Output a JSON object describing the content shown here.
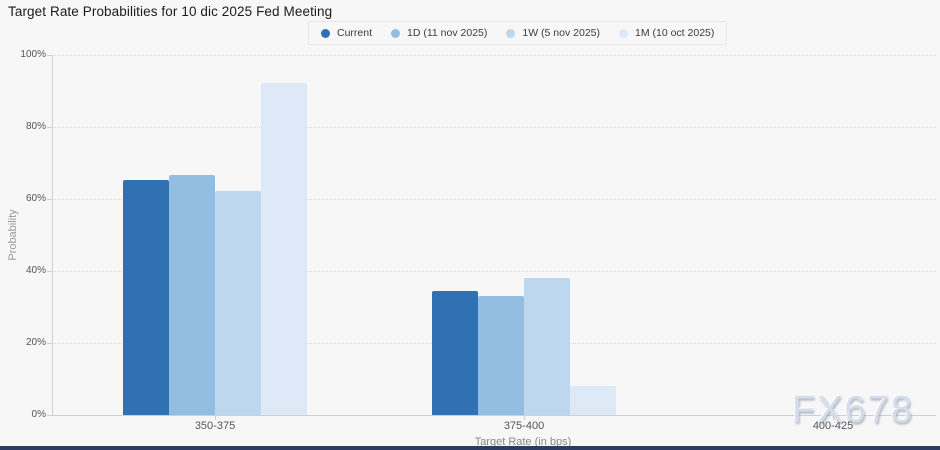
{
  "page": {
    "title": "Target Rate Probabilities for 10 dic 2025 Fed Meeting",
    "watermark": "FX678",
    "background_color": "#f7f7f7",
    "footer_bar_color": "#2b3c63"
  },
  "legend": {
    "items": [
      {
        "label": "Current",
        "color": "#2f71b2"
      },
      {
        "label": "1D (11 nov 2025)",
        "color": "#94bde2"
      },
      {
        "label": "1W (5 nov 2025)",
        "color": "#bdd7ee"
      },
      {
        "label": "1M (10 oct 2025)",
        "color": "#dde9f7"
      }
    ]
  },
  "chart_data": {
    "type": "bar",
    "title": "Target Rate Probabilities for 10 dic 2025 Fed Meeting",
    "categories": [
      "350-375",
      "375-400",
      "400-425"
    ],
    "series": [
      {
        "name": "Current",
        "color": "#2f71b2",
        "values": [
          65.3,
          34.5,
          0
        ]
      },
      {
        "name": "1D (11 nov 2025)",
        "color": "#94bde2",
        "values": [
          66.8,
          33.1,
          0
        ]
      },
      {
        "name": "1W (5 nov 2025)",
        "color": "#bdd7ee",
        "values": [
          62.1,
          38.0,
          0
        ]
      },
      {
        "name": "1M (10 oct 2025)",
        "color": "#dde9f7",
        "values": [
          92.2,
          8.0,
          0
        ]
      }
    ],
    "xlabel": "Target Rate (in bps)",
    "ylabel": "Probability",
    "ylim": [
      0,
      100
    ],
    "ytick_values": [
      0,
      20,
      40,
      60,
      80,
      100
    ],
    "ytick_labels": [
      "0%",
      "20%",
      "40%",
      "60%",
      "80%",
      "100%"
    ],
    "grid": "horizontal-dotted",
    "legend_position": "top-center"
  }
}
